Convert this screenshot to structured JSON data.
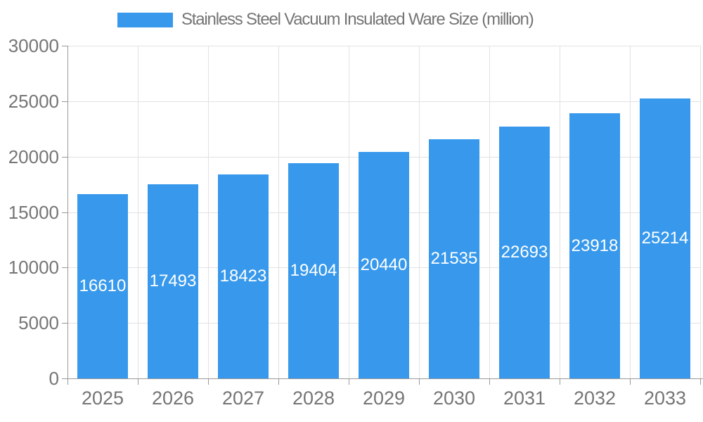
{
  "chart_data": {
    "type": "bar",
    "title": "Stainless Steel Vacuum Insulated Ware Size (million)",
    "legend": {
      "label": "Stainless Steel Vacuum Insulated Ware Size (million)",
      "position": "top"
    },
    "categories": [
      "2025",
      "2026",
      "2027",
      "2028",
      "2029",
      "2030",
      "2031",
      "2032",
      "2033"
    ],
    "values": [
      16610,
      17493,
      18423,
      19404,
      20440,
      21535,
      22693,
      23918,
      25214
    ],
    "xlabel": "",
    "ylabel": "",
    "ylim": [
      0,
      30000
    ],
    "ytick_step": 5000,
    "ytick_labels": [
      "0",
      "5000",
      "10000",
      "15000",
      "20000",
      "25000",
      "30000"
    ],
    "grid": "on",
    "data_labels": "inside-center-white",
    "colors": {
      "bar": "#3899EC",
      "axis": "#999999",
      "gridline": "#e2e2e2",
      "tick_text": "#757575",
      "bar_label_text": "#ffffff",
      "background": "#ffffff"
    }
  }
}
